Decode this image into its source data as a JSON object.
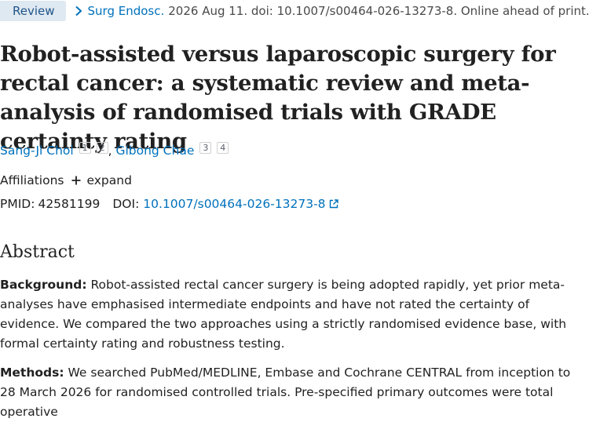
{
  "citation_bar": {
    "type_badge": "Review",
    "journal": "Surg Endosc.",
    "details": "2026 Aug 11. doi: 10.1007/s00464-026-13273-8. Online ahead of print."
  },
  "article": {
    "title": "Robot-assisted versus laparoscopic surgery for rectal cancer: a systematic review and meta-analysis of randomised trials with GRADE certainty rating",
    "authors": [
      {
        "name": "Sang-Ji Choi",
        "affiliations": [
          "1",
          "2"
        ]
      },
      {
        "name": "Gibong Chae",
        "affiliations": [
          "3",
          "4"
        ]
      }
    ],
    "author_separator": ",",
    "affiliations_label": "Affiliations",
    "expand_label": "expand",
    "pmid_label": "PMID:",
    "pmid": "42581199",
    "doi_label": "DOI:",
    "doi": "10.1007/s00464-026-13273-8"
  },
  "abstract": {
    "heading": "Abstract",
    "sections": [
      {
        "label": "Background:",
        "text": "Robot-assisted rectal cancer surgery is being adopted rapidly, yet prior meta-analyses have emphasised intermediate endpoints and have not rated the certainty of evidence. We compared the two approaches using a strictly randomised evidence base, with formal certainty rating and robustness testing."
      },
      {
        "label": "Methods:",
        "text": "We searched PubMed/MEDLINE, Embase and Cochrane CENTRAL from inception to 28 March 2026 for randomised controlled trials. Pre-specified primary outcomes were total operative"
      }
    ]
  },
  "colors": {
    "link": "#0071bc",
    "badge_bg": "#dfe9f1",
    "badge_text": "#20558a",
    "text": "#212121"
  },
  "icons": [
    "chevron-right-icon",
    "plus-icon",
    "external-link-icon"
  ]
}
